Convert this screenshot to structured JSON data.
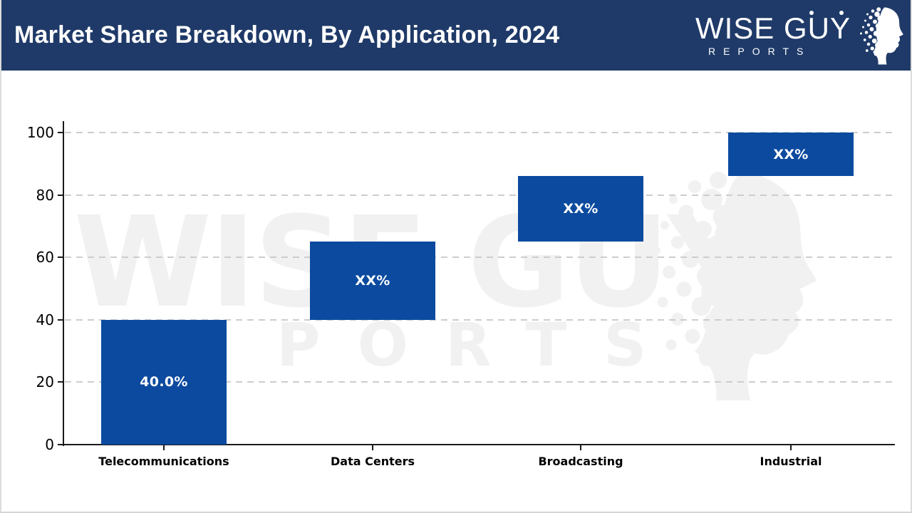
{
  "header": {
    "title": "Market Share Breakdown, By Application, 2024",
    "logo": {
      "line1": "WISE GUY",
      "line2": "REPORTS"
    }
  },
  "watermark": {
    "line1": "WISE GUY",
    "line2": "PORTS"
  },
  "chart_data": {
    "type": "bar",
    "subtype": "waterfall",
    "title": "Market Share Breakdown, By Application, 2024",
    "categories": [
      "Telecommunications",
      "Data Centers",
      "Broadcasting",
      "Industrial"
    ],
    "bars": [
      {
        "category": "Telecommunications",
        "start": 0,
        "end": 40,
        "value": 40,
        "label": "40.0%"
      },
      {
        "category": "Data Centers",
        "start": 40,
        "end": 65,
        "value": 25,
        "label": "XX%"
      },
      {
        "category": "Broadcasting",
        "start": 65,
        "end": 86,
        "value": 21,
        "label": "XX%"
      },
      {
        "category": "Industrial",
        "start": 86,
        "end": 100,
        "value": 14,
        "label": "XX%"
      }
    ],
    "yticks": [
      0,
      20,
      40,
      60,
      80,
      100
    ],
    "ylim": [
      0,
      104
    ],
    "xlabel": "",
    "ylabel": "",
    "grid": "horizontal-dashed",
    "legend": "none"
  },
  "colors": {
    "header_bg": "#1F3A68",
    "bar": "#0B4A9F",
    "bar_label": "#FFFFFF",
    "watermark": "#F1F1F1",
    "gridline": "#CDCDCD",
    "axis": "#1A1A1A",
    "title": "#FFFFFF"
  }
}
